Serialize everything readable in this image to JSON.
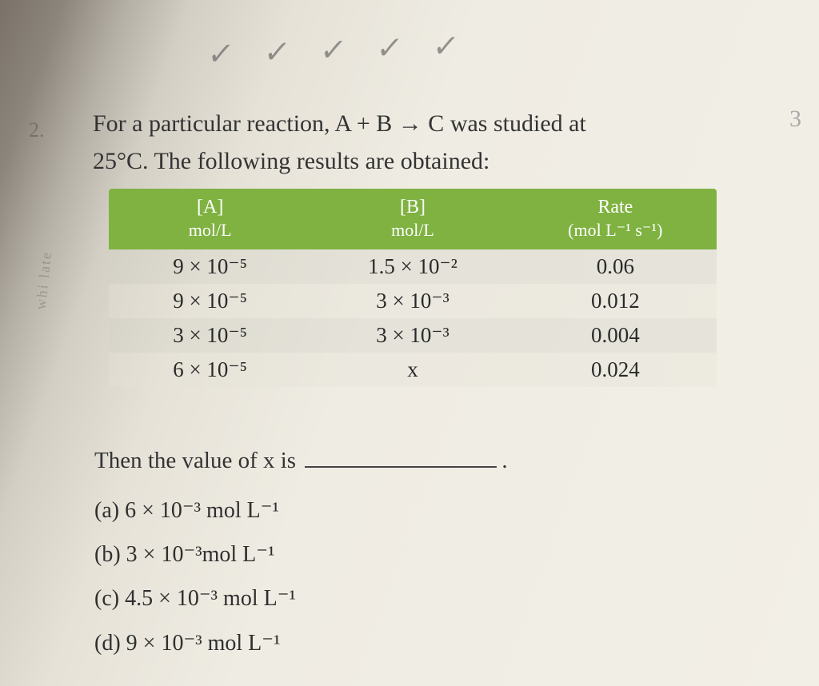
{
  "tickmarks": "✓ ✓ ✓ ✓ ✓",
  "question_number": "2.",
  "margin_mark": "3",
  "side_text": "whi\nlate",
  "question": {
    "line1": "For a particular reaction, A + B → C was studied at",
    "line2": "25°C. The following results are obtained:"
  },
  "table": {
    "header_bg": "#7fb241",
    "header_fg": "#ffffff",
    "columns": [
      {
        "title": "[A]",
        "sub": "mol/L"
      },
      {
        "title": "[B]",
        "sub": "mol/L"
      },
      {
        "title": "Rate",
        "sub": "(mol L⁻¹ s⁻¹)"
      }
    ],
    "rows": [
      {
        "a": "9 × 10⁻⁵",
        "b": "1.5 × 10⁻²",
        "rate": "0.06"
      },
      {
        "a": "9 × 10⁻⁵",
        "b": "3 × 10⁻³",
        "rate": "0.012"
      },
      {
        "a": "3 × 10⁻⁵",
        "b": "3 × 10⁻³",
        "rate": "0.004"
      },
      {
        "a": "6 × 10⁻⁵",
        "b": "x",
        "rate": "0.024"
      }
    ]
  },
  "prompt": {
    "prefix": "Then the value of x is",
    "suffix": "."
  },
  "options": {
    "a": {
      "label": "(a)",
      "value": "6 × 10⁻³ mol L⁻¹"
    },
    "b": {
      "label": "(b)",
      "value": "3 × 10⁻³mol L⁻¹"
    },
    "c": {
      "label": "(c)",
      "value": "4.5 × 10⁻³ mol L⁻¹"
    },
    "d": {
      "label": "(d)",
      "value": "9 × 10⁻³ mol L⁻¹"
    }
  }
}
